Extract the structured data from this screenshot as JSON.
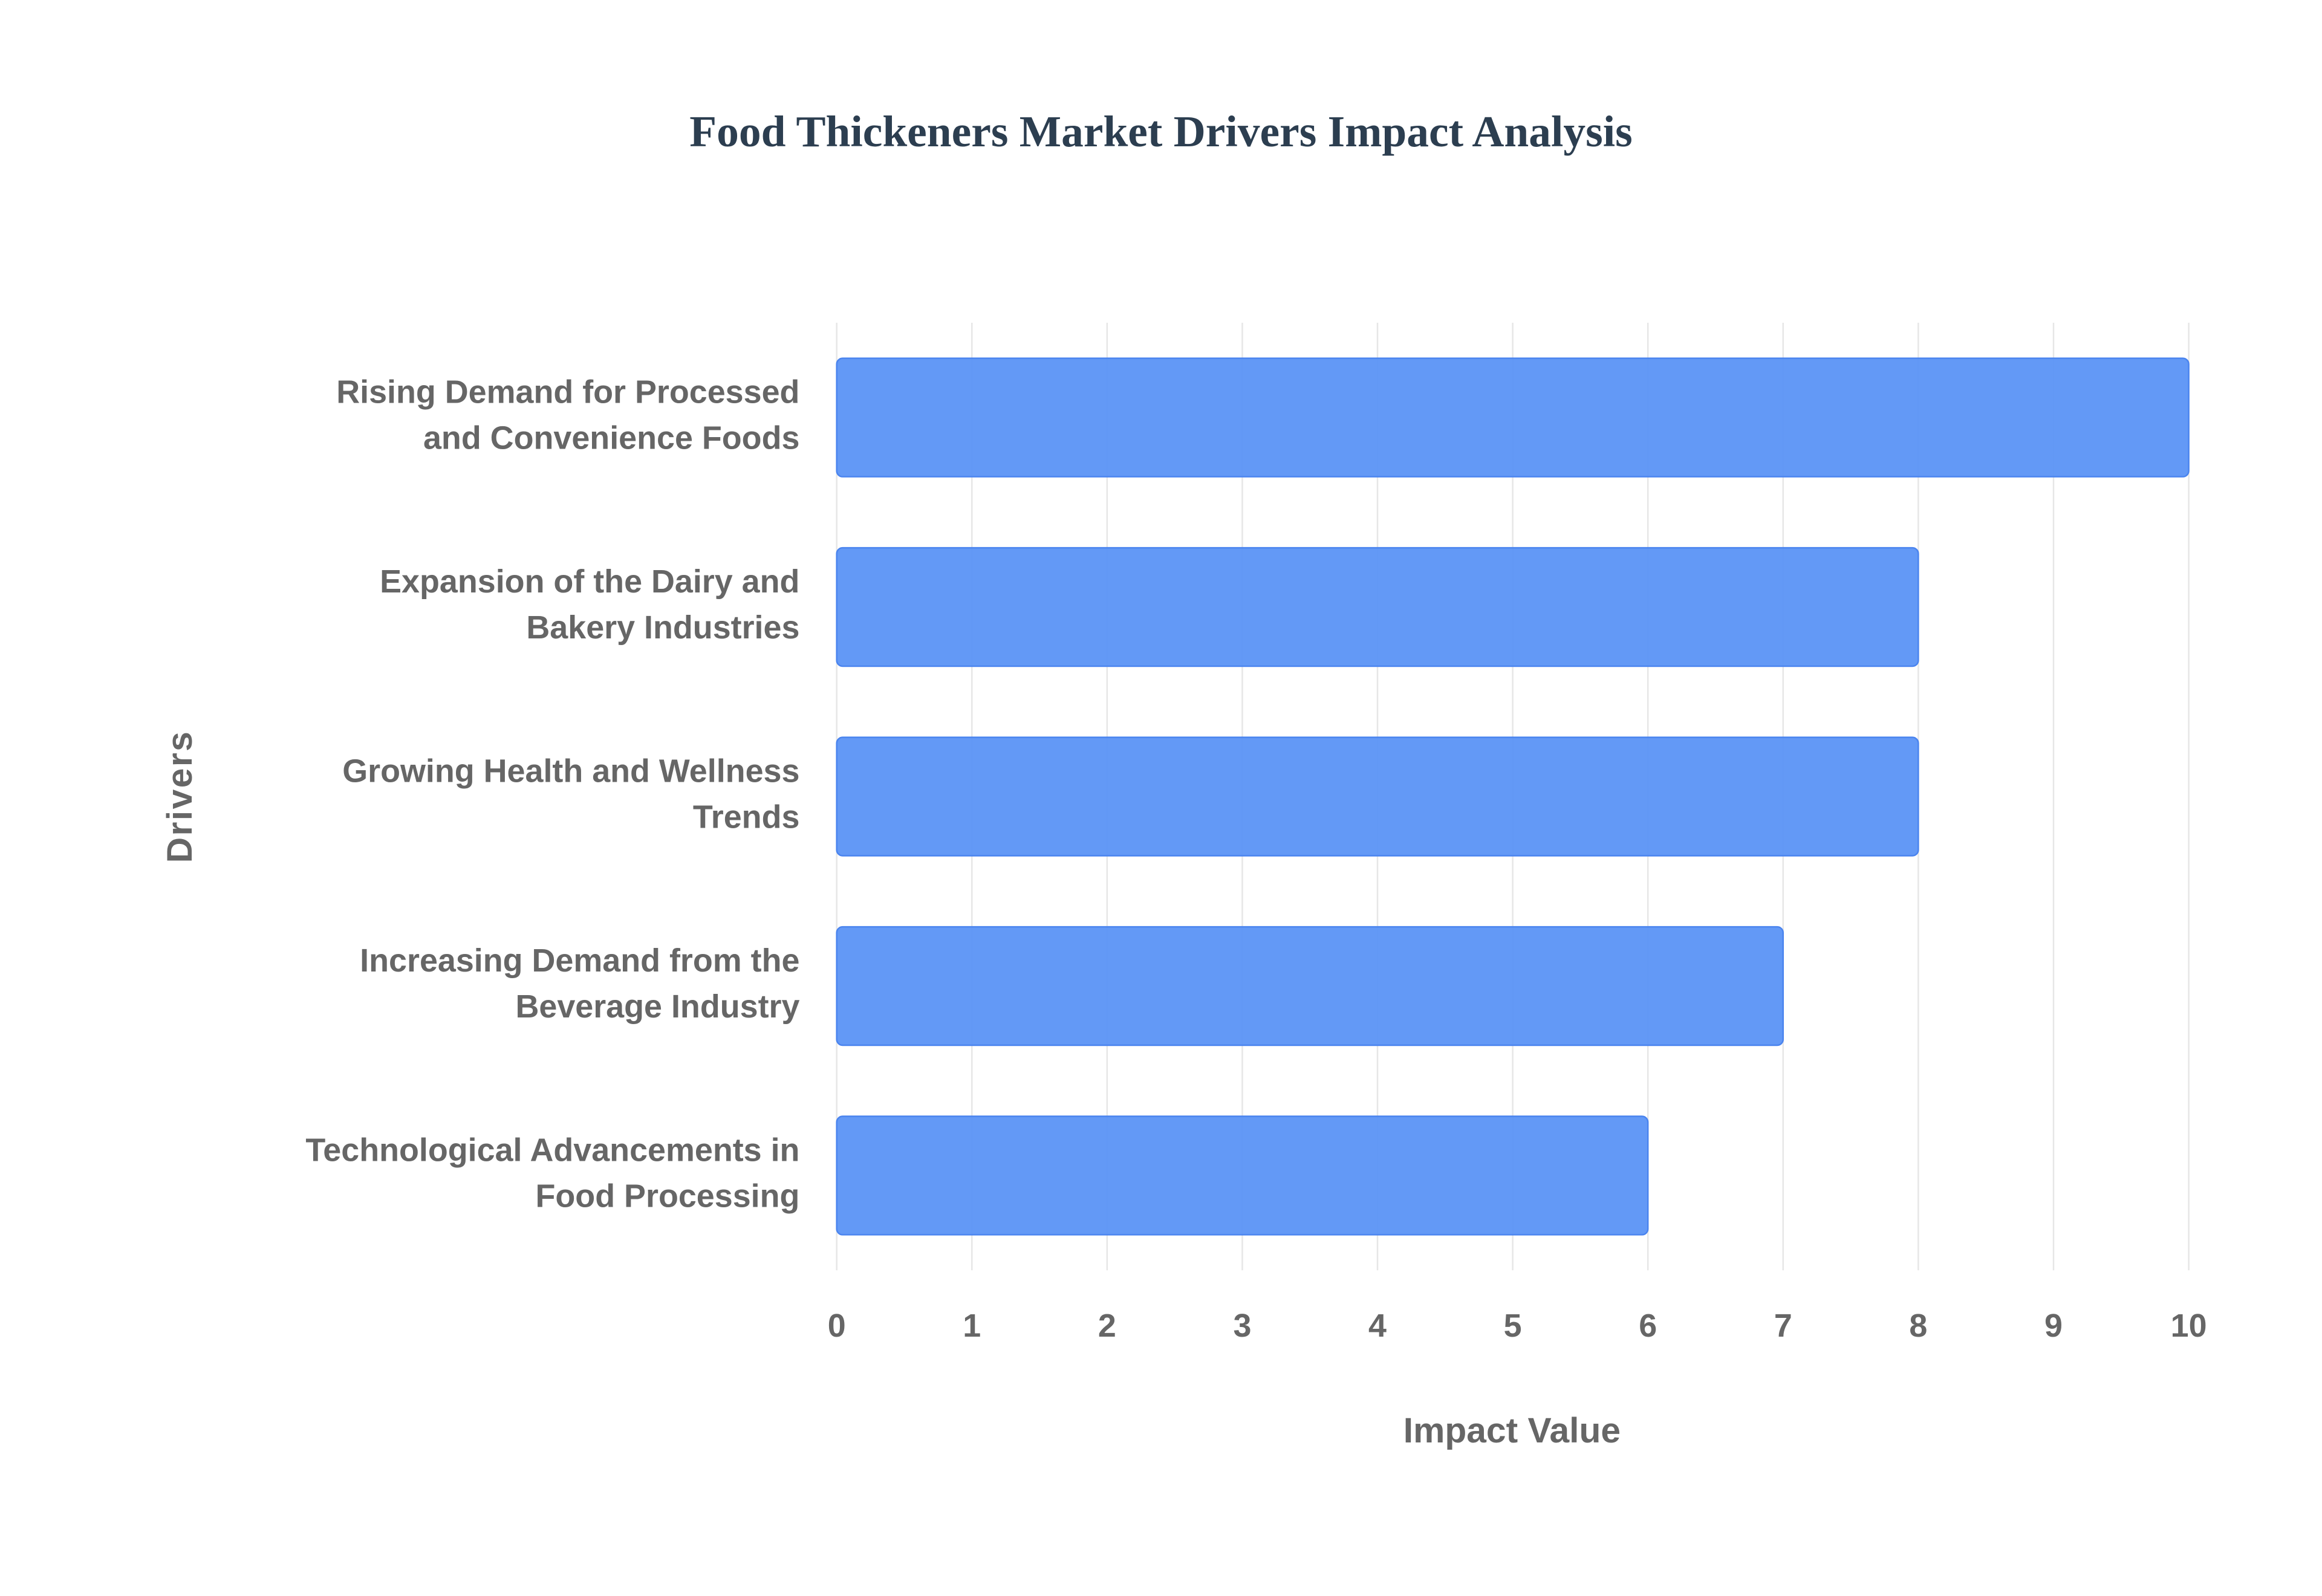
{
  "chart_data": {
    "type": "bar",
    "orientation": "horizontal",
    "title": "Food Thickeners Market Drivers Impact Analysis",
    "x_label": "Impact Value",
    "y_label": "Drivers",
    "categories": [
      [
        "Rising Demand for Processed",
        "and Convenience Foods"
      ],
      [
        "Expansion of the Dairy and",
        "Bakery Industries"
      ],
      [
        "Growing Health and Wellness",
        "Trends"
      ],
      [
        "Increasing Demand from the",
        "Beverage Industry"
      ],
      [
        "Technological Advancements in",
        "Food Processing"
      ]
    ],
    "values": [
      10,
      8,
      8,
      7,
      6
    ],
    "color": "#5b93f5",
    "xlim": [
      0,
      10
    ],
    "xticks": [
      0,
      1,
      2,
      3,
      4,
      5,
      6,
      7,
      8,
      9,
      10
    ],
    "grid": true
  }
}
